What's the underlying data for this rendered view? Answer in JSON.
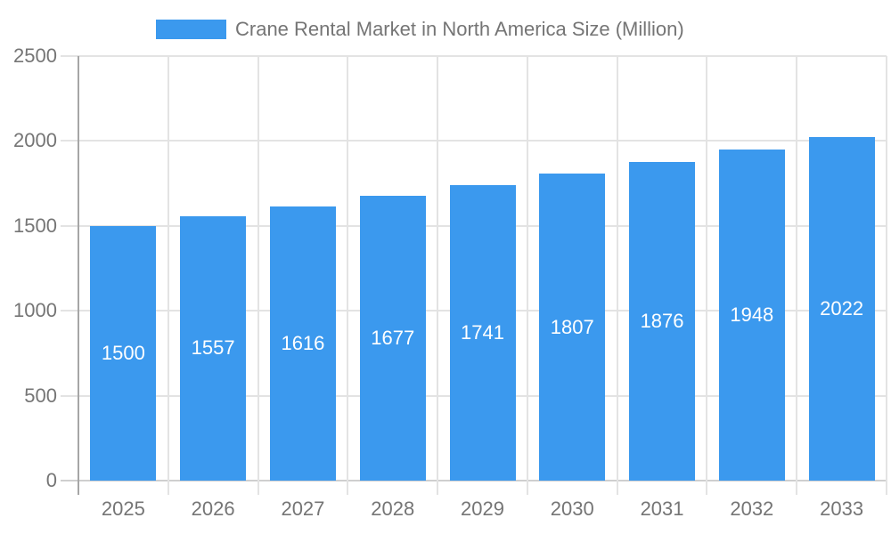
{
  "chart_data": {
    "type": "bar",
    "title": "Crane Rental Market in North America Size (Million)",
    "categories": [
      "2025",
      "2026",
      "2027",
      "2028",
      "2029",
      "2030",
      "2031",
      "2032",
      "2033"
    ],
    "values": [
      1500,
      1557,
      1616,
      1677,
      1741,
      1807,
      1876,
      1948,
      2022
    ],
    "legend": {
      "label": "Crane Rental Market in North America Size (Million)",
      "position": "top"
    },
    "xlabel": "",
    "ylabel": "",
    "ylim": [
      0,
      2500
    ],
    "yticks": [
      0,
      500,
      1000,
      1500,
      2000,
      2500
    ],
    "grid": true,
    "value_labels": "inside-center",
    "colors": {
      "bar": "#3b99ee",
      "value_label": "#ffffff",
      "axis_text": "#757575",
      "gridline": "#e3e3e3",
      "baseline": "#cfcfcf",
      "axis_line": "#a6a6a6",
      "background": "#ffffff"
    }
  }
}
